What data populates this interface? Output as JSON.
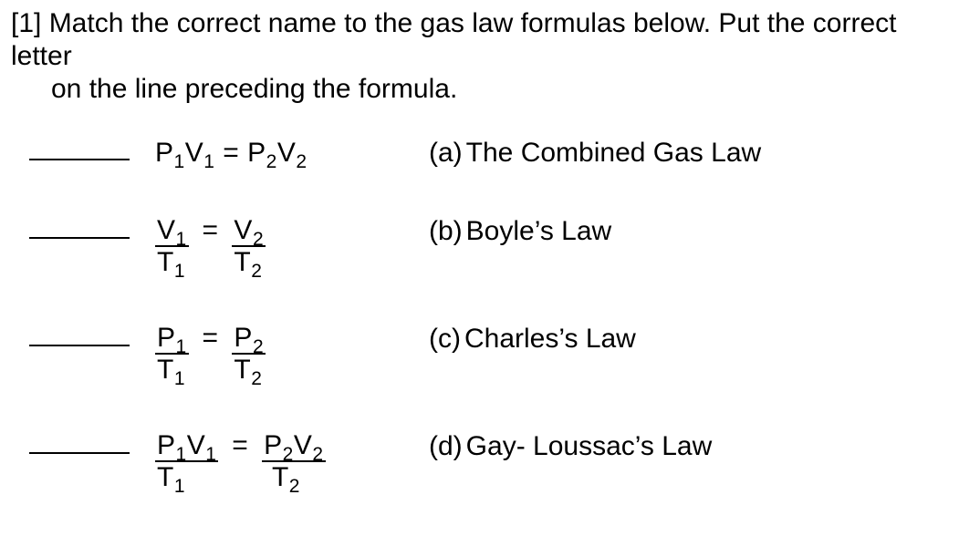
{
  "instruction": {
    "line1": "[1] Match the correct name to the gas law formulas below.  Put the correct letter",
    "line2": "on the line preceding the formula."
  },
  "rows": [
    {
      "formula": {
        "type": "single",
        "left": {
          "base": "P",
          "sub": "1"
        },
        "left2": {
          "base": "V",
          "sub": "1"
        },
        "right": {
          "base": "P",
          "sub": "2"
        },
        "right2": {
          "base": "V",
          "sub": "2"
        }
      },
      "answer_letter": "(a)",
      "answer_text": "The Combined Gas Law"
    },
    {
      "formula": {
        "type": "frac",
        "leftNum": {
          "base": "V",
          "sub": "1"
        },
        "leftDen": {
          "base": "T",
          "sub": "1"
        },
        "rightNum": {
          "base": "V",
          "sub": "2"
        },
        "rightDen": {
          "base": "T",
          "sub": "2"
        }
      },
      "answer_letter": "(b)",
      "answer_text": "Boyle’s Law"
    },
    {
      "formula": {
        "type": "frac",
        "leftNum": {
          "base": "P",
          "sub": "1"
        },
        "leftDen": {
          "base": "T",
          "sub": "1"
        },
        "rightNum": {
          "base": "P",
          "sub": "2"
        },
        "rightDen": {
          "base": "T",
          "sub": "2"
        }
      },
      "answer_letter": "(c)",
      "answer_text": "Charles’s Law"
    },
    {
      "formula": {
        "type": "frac2",
        "leftNumA": {
          "base": "P",
          "sub": "1"
        },
        "leftNumB": {
          "base": "V",
          "sub": "1"
        },
        "leftDen": {
          "base": "T",
          "sub": "1"
        },
        "rightNumA": {
          "base": "P",
          "sub": "2"
        },
        "rightNumB": {
          "base": "V",
          "sub": "2"
        },
        "rightDen": {
          "base": "T",
          "sub": "2"
        }
      },
      "answer_letter": "(d)",
      "answer_text": "Gay- Loussac’s Law"
    }
  ]
}
